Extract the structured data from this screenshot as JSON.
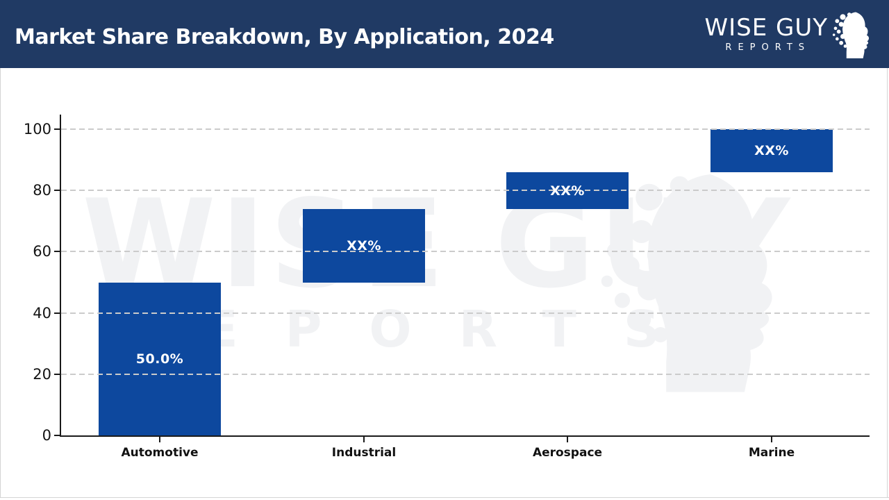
{
  "header": {
    "title": "Market Share Breakdown, By Application, 2024",
    "bg_color": "#203A64",
    "text_color": "#FFFFFF"
  },
  "brand": {
    "name": "WISE GUY",
    "subname": "REPORTS"
  },
  "watermark": {
    "line1": "WISE GUY",
    "line2": "REPORTS",
    "color": "#F1F2F4"
  },
  "chart_data": {
    "type": "bar",
    "subtype": "waterfall",
    "title": "Market Share Breakdown, By Application, 2024",
    "categories": [
      "Automotive",
      "Industrial",
      "Aerospace",
      "Marine"
    ],
    "segments": [
      {
        "category": "Automotive",
        "start": 0,
        "end": 50,
        "label": "50.0%"
      },
      {
        "category": "Industrial",
        "start": 50,
        "end": 74,
        "label": "XX%"
      },
      {
        "category": "Aerospace",
        "start": 74,
        "end": 86,
        "label": "XX%"
      },
      {
        "category": "Marine",
        "start": 86,
        "end": 100,
        "label": "XX%"
      }
    ],
    "y_ticks": [
      0,
      20,
      40,
      60,
      80,
      100
    ],
    "ylim": [
      0,
      105
    ],
    "xlabel": "",
    "ylabel": "",
    "grid": "horizontal-dashed",
    "legend": "none",
    "bar_color": "#0D489E",
    "bar_label_color": "#FFFFFF",
    "axis_color": "#1A1A1A",
    "gridline_color": "#CBCBCB"
  }
}
